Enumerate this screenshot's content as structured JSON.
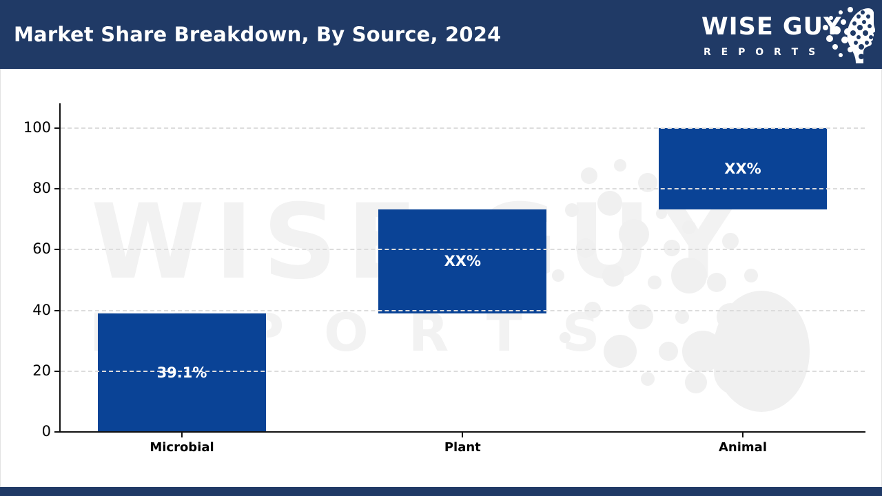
{
  "header": {
    "title": "Market Share Breakdown, By Source, 2024",
    "bg_color": "#203a66",
    "logo": {
      "wise_guy": "WISE GUY",
      "reports": "R E P O R T S"
    }
  },
  "watermark": {
    "wise_guy": "WISE GUY",
    "reports": "REPORTS"
  },
  "chart_data": {
    "type": "bar",
    "subtype": "waterfall",
    "title": "",
    "xlabel": "",
    "ylabel": "",
    "categories": [
      "Microbial",
      "Plant",
      "Animal"
    ],
    "segments": [
      {
        "category": "Microbial",
        "start": 0,
        "end": 39.1,
        "label": "39.1%"
      },
      {
        "category": "Plant",
        "start": 39.1,
        "end": 73.3,
        "label": "XX%"
      },
      {
        "category": "Animal",
        "start": 73.3,
        "end": 100,
        "label": "XX%"
      }
    ],
    "ylim": [
      0,
      100
    ],
    "yticks": [
      0,
      20,
      40,
      60,
      80,
      100
    ],
    "grid": true,
    "grid_style": "dashed",
    "bar_color": "#0a4396",
    "label_color": "#ffffff",
    "legend": "none"
  },
  "footer": {
    "bg_color": "#203a66"
  }
}
